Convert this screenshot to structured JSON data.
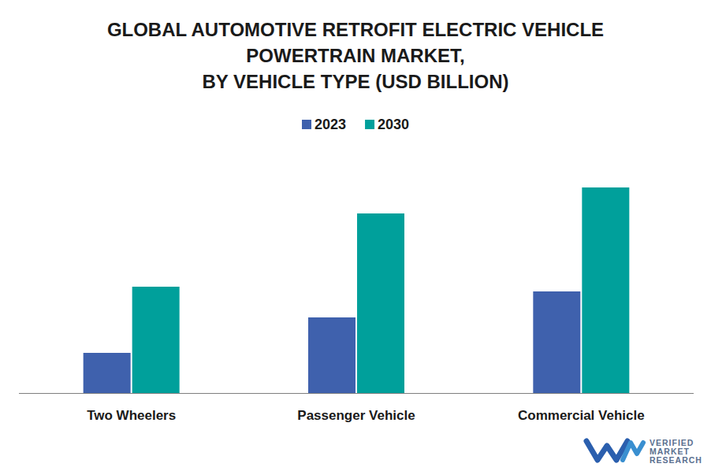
{
  "chart_data": {
    "type": "bar",
    "title": [
      "GLOBAL AUTOMOTIVE RETROFIT ELECTRIC VEHICLE",
      "POWERTRAIN MARKET,",
      "BY VEHICLE TYPE (USD BILLION)"
    ],
    "categories": [
      "Two Wheelers",
      "Passenger Vehicle",
      "Commercial Vehicle"
    ],
    "series": [
      {
        "name": "2023",
        "color": "#3f61ad",
        "values": [
          5.1,
          9.6,
          12.9
        ]
      },
      {
        "name": "2030",
        "color": "#00a09b",
        "values": [
          13.5,
          22.8,
          26.1
        ]
      }
    ],
    "ylim": [
      0,
      30
    ],
    "tick_labels": "x",
    "legend": "top",
    "watermark": [
      "VERIFIED",
      "MARKET",
      "RESEARCH"
    ]
  }
}
